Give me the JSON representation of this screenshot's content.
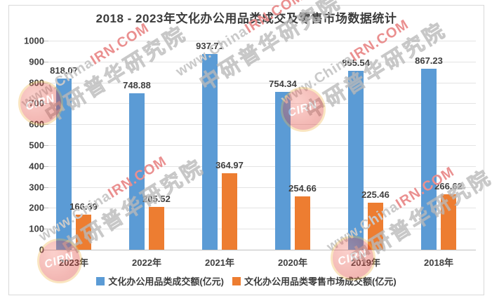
{
  "title": "2018 - 2023年文化办公用品类成交及零售市场数据统计",
  "chart_data": {
    "type": "bar",
    "categories": [
      "2023年",
      "2022年",
      "2021年",
      "2020年",
      "2019年",
      "2018年"
    ],
    "series": [
      {
        "name": "文化办公用品类成交额(亿元)",
        "color": "#5B9BD5",
        "values": [
          818.07,
          748.88,
          937.71,
          754.34,
          855.54,
          867.23
        ]
      },
      {
        "name": "文化办公用品类零售市场成交额(亿元)",
        "color": "#ED7D31",
        "values": [
          166.39,
          205.52,
          364.97,
          254.66,
          225.46,
          266.62
        ]
      }
    ],
    "ylim": [
      0,
      1000
    ],
    "ytick_step": 100,
    "grid": true,
    "legend_position": "bottom",
    "value_labels_decimals": 2
  },
  "watermark": {
    "site_gray": "www.China",
    "site_red": "IRN.COM",
    "brand": "中研普华研究院",
    "logo": "CIRN",
    "logo_red": "#DD3226",
    "ring_yellow": "#F3B64A"
  },
  "colors": {
    "series_blue": "#5B9BD5",
    "series_orange": "#ED7D31",
    "text": "#404040",
    "gridline": "#E3E3E3",
    "axis": "#BFBFBF",
    "frame_border": "#D9D9D9"
  }
}
